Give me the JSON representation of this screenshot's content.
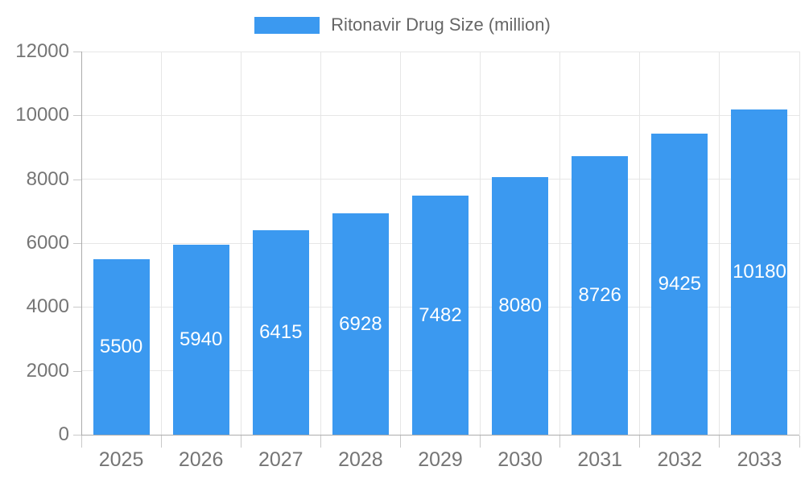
{
  "chart_data": {
    "type": "bar",
    "title": "Ritonavir Drug Size (million)",
    "legend": {
      "position": "top",
      "label": "Ritonavir Drug Size (million)"
    },
    "categories": [
      "2025",
      "2026",
      "2027",
      "2028",
      "2029",
      "2030",
      "2031",
      "2032",
      "2033"
    ],
    "values": [
      5500,
      5940,
      6415,
      6928,
      7482,
      8080,
      8726,
      9425,
      10180
    ],
    "bar_labels": [
      "5500",
      "5940",
      "6415",
      "6928",
      "7482",
      "8080",
      "8726",
      "9425",
      "10180"
    ],
    "xlabel": "",
    "ylabel": "",
    "ylim": [
      0,
      12000
    ],
    "yticks": [
      0,
      2000,
      4000,
      6000,
      8000,
      10000,
      12000
    ],
    "grid": true,
    "colors": {
      "bar": "#3B99F0",
      "grid": "#E6E6E6",
      "axis": "#ACACAC",
      "tick_mark": "#C9C9C9",
      "tick_text": "#757575",
      "legend_text": "#666666",
      "bar_label_text": "#FFFFFF"
    }
  }
}
